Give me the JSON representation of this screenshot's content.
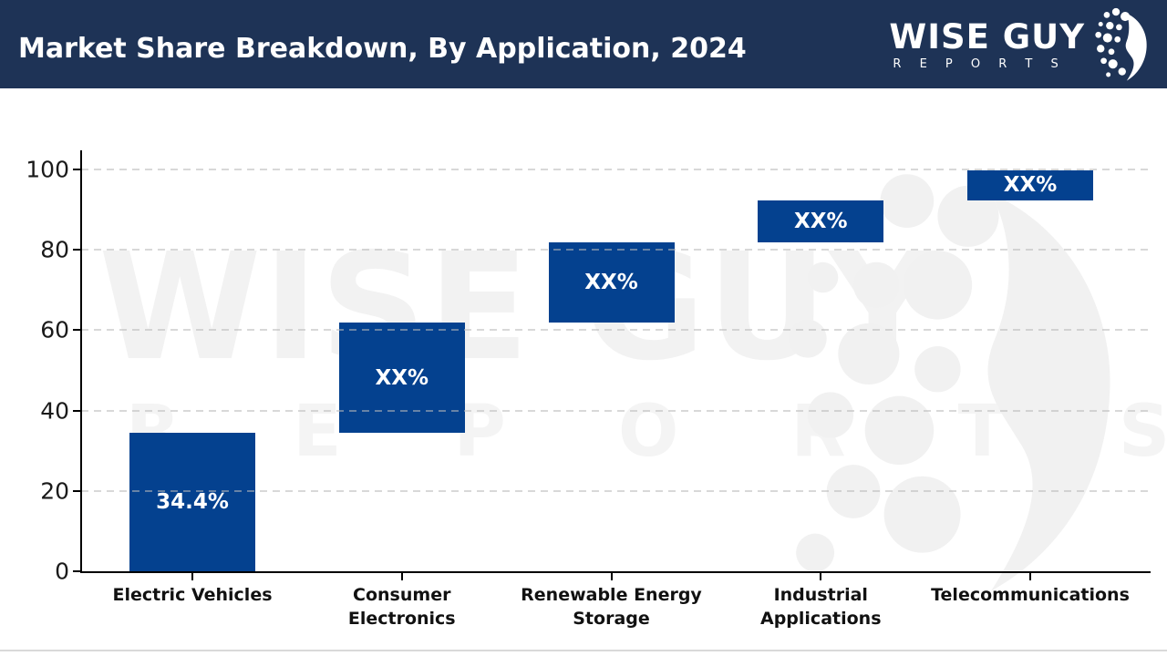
{
  "header": {
    "title": "Market Share Breakdown, By Application, 2024",
    "logo": {
      "line1": "WISE GUY",
      "line2": "R E P O R T S"
    }
  },
  "watermark": {
    "line1": "WISE GUY",
    "line2": "R E P O R T S"
  },
  "colors": {
    "header_bg": "#1e3356",
    "bar": "#04418f",
    "bar_label": "#ffffff",
    "grid": "#bdbdbd",
    "axis": "#000000",
    "watermark": "#f2f2f2"
  },
  "chart_data": {
    "type": "bar",
    "subtype": "waterfall",
    "title": "Market Share Breakdown, By Application, 2024",
    "xlabel": "",
    "ylabel": "",
    "categories": [
      "Electric Vehicles",
      "Consumer Electronics",
      "Renewable Energy Storage",
      "Industrial Applications",
      "Telecommunications"
    ],
    "category_lines": [
      [
        "Electric Vehicles"
      ],
      [
        "Consumer",
        "Electronics"
      ],
      [
        "Renewable Energy",
        "Storage"
      ],
      [
        "Industrial",
        "Applications"
      ],
      [
        "Telecommunications"
      ]
    ],
    "segments": [
      {
        "category": "Electric Vehicles",
        "start": 0,
        "end": 34.4,
        "label": "34.4%"
      },
      {
        "category": "Consumer Electronics",
        "start": 34.4,
        "end": 61.9,
        "label": "XX%"
      },
      {
        "category": "Renewable Energy Storage",
        "start": 61.9,
        "end": 81.8,
        "label": "XX%"
      },
      {
        "category": "Industrial Applications",
        "start": 81.8,
        "end": 92.4,
        "label": "XX%"
      },
      {
        "category": "Telecommunications",
        "start": 92.4,
        "end": 99.8,
        "label": "XX%"
      }
    ],
    "yticks": [
      0,
      20,
      40,
      60,
      80,
      100
    ],
    "ylim": [
      0,
      104.8
    ],
    "grid": "dashed-horizontal-above-bars",
    "legend": "none"
  }
}
